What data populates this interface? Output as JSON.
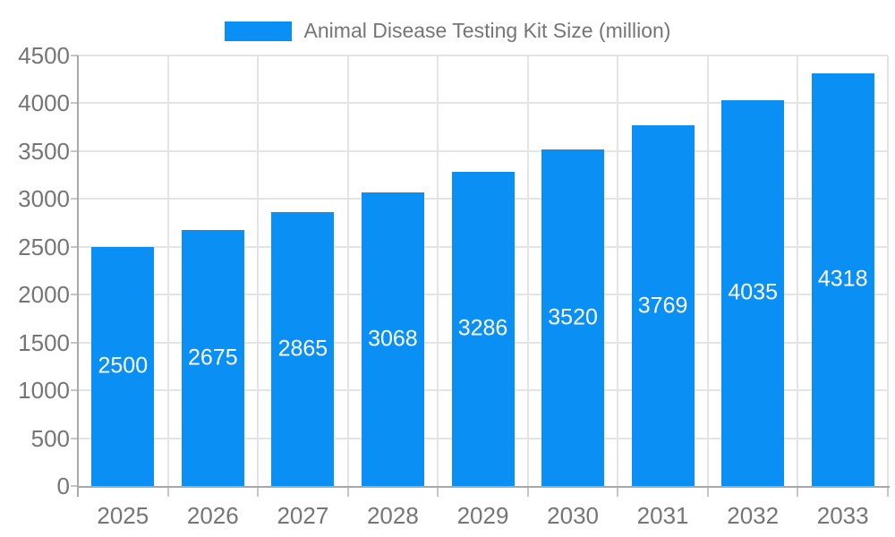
{
  "legend": {
    "label": "Animal Disease Testing Kit Size (million)"
  },
  "chart_data": {
    "type": "bar",
    "title": "Animal Disease Testing Kit Size (million)",
    "categories": [
      "2025",
      "2026",
      "2027",
      "2028",
      "2029",
      "2030",
      "2031",
      "2032",
      "2033"
    ],
    "values": [
      2500,
      2675,
      2865,
      3068,
      3286,
      3520,
      3769,
      4035,
      4318
    ],
    "value_labels_shown": true,
    "xlabel": "",
    "ylabel": "",
    "ylim": [
      0,
      4500
    ],
    "yticks": [
      0,
      500,
      1000,
      1500,
      2000,
      2500,
      3000,
      3500,
      4000,
      4500
    ],
    "grid": true,
    "legend_position": "top"
  },
  "colors": {
    "bar": "#0a8ff5",
    "axis_line": "#a8a8a8",
    "grid_line": "#e4e4e4",
    "tick_mark": "#c6c6c6",
    "axis_text": "#757575",
    "value_text": "#ffffff",
    "background": "#ffffff"
  }
}
